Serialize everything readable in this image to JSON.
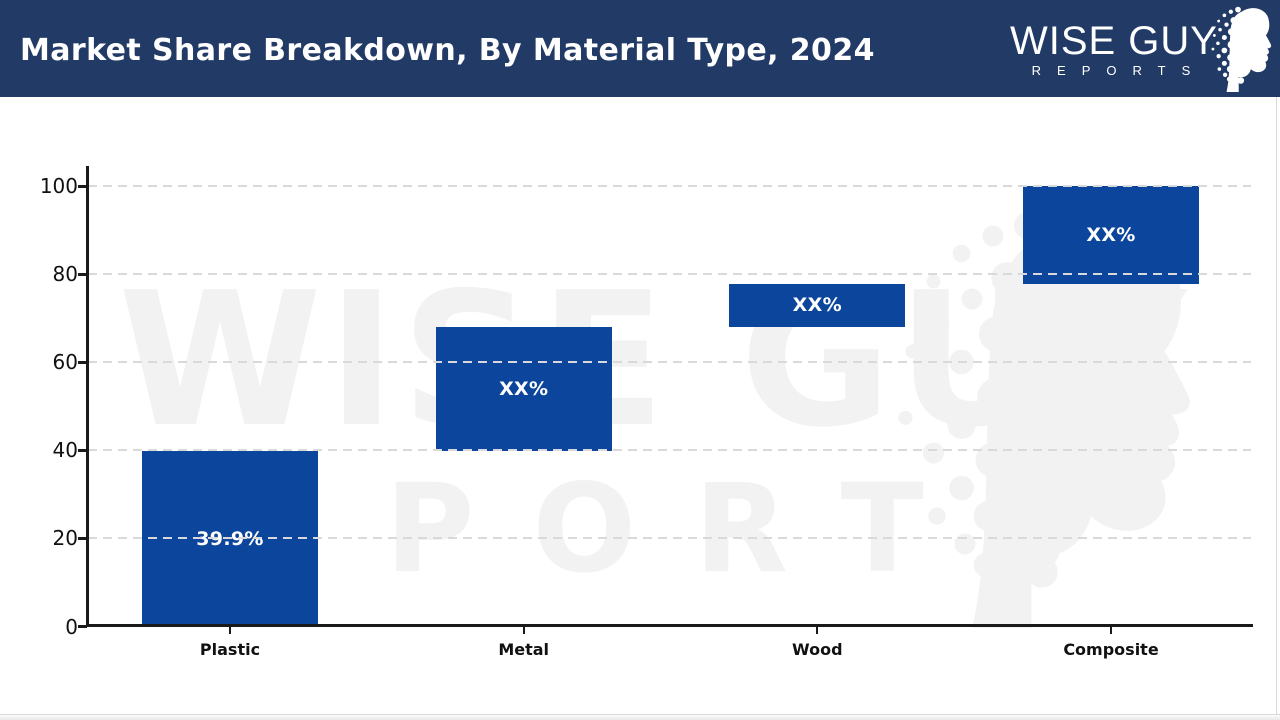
{
  "header": {
    "title": "Market Share Breakdown, By Material Type, 2024",
    "background_color": "#213A66",
    "logo": {
      "wordmark": "WISE GUY",
      "subtext": "REPORTS"
    }
  },
  "watermark": {
    "wordmark": "WISE GUY",
    "subtext": "PORTS"
  },
  "chart_data": {
    "type": "bar",
    "variant": "waterfall",
    "title": "Market Share Breakdown, By Material Type, 2024",
    "categories": [
      "Plastic",
      "Metal",
      "Wood",
      "Composite"
    ],
    "segments": [
      {
        "category": "Plastic",
        "label": "39.9%",
        "start": 0,
        "end": 39.9
      },
      {
        "category": "Metal",
        "label": "XX%",
        "start": 39.9,
        "end": 68
      },
      {
        "category": "Wood",
        "label": "XX%",
        "start": 68,
        "end": 77.8
      },
      {
        "category": "Composite",
        "label": "XX%",
        "start": 77.8,
        "end": 100
      }
    ],
    "ylim": [
      0,
      105
    ],
    "yticks": [
      0,
      20,
      40,
      60,
      80,
      100
    ],
    "grid": {
      "axis": "y",
      "style": "dashed",
      "color": "#D9D9D9"
    },
    "legend": "none",
    "bar_color": "#0C459C",
    "value_label_color": "#FFFFFF",
    "axis_color": "#1A1A1A",
    "watermark_color": "#F2F2F2"
  }
}
